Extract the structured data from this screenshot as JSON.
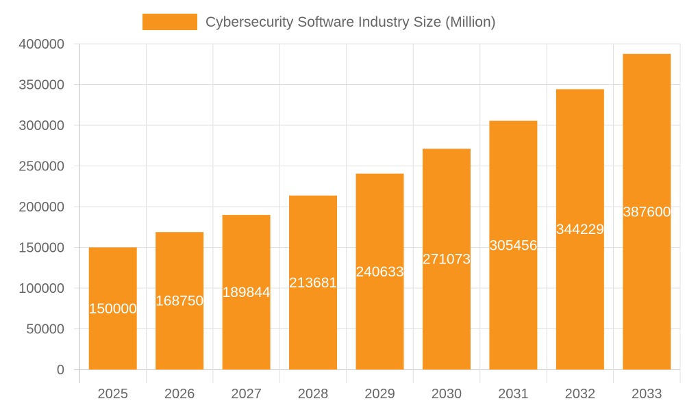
{
  "chart_data": {
    "type": "bar",
    "title": "",
    "xlabel": "",
    "ylabel": "",
    "categories": [
      "2025",
      "2026",
      "2027",
      "2028",
      "2029",
      "2030",
      "2031",
      "2032",
      "2033"
    ],
    "series": [
      {
        "name": "Cybersecurity Software Industry Size (Million)",
        "values": [
          150000,
          168750,
          189844,
          213681,
          240633,
          271073,
          305456,
          344229,
          387600
        ],
        "color": "#f7941e"
      }
    ],
    "ylim": [
      0,
      400000
    ],
    "yticks": [
      0,
      50000,
      100000,
      150000,
      200000,
      250000,
      300000,
      350000,
      400000
    ],
    "grid": true,
    "legend_position": "top",
    "data_labels": true,
    "data_label_color": "#ffffff"
  }
}
